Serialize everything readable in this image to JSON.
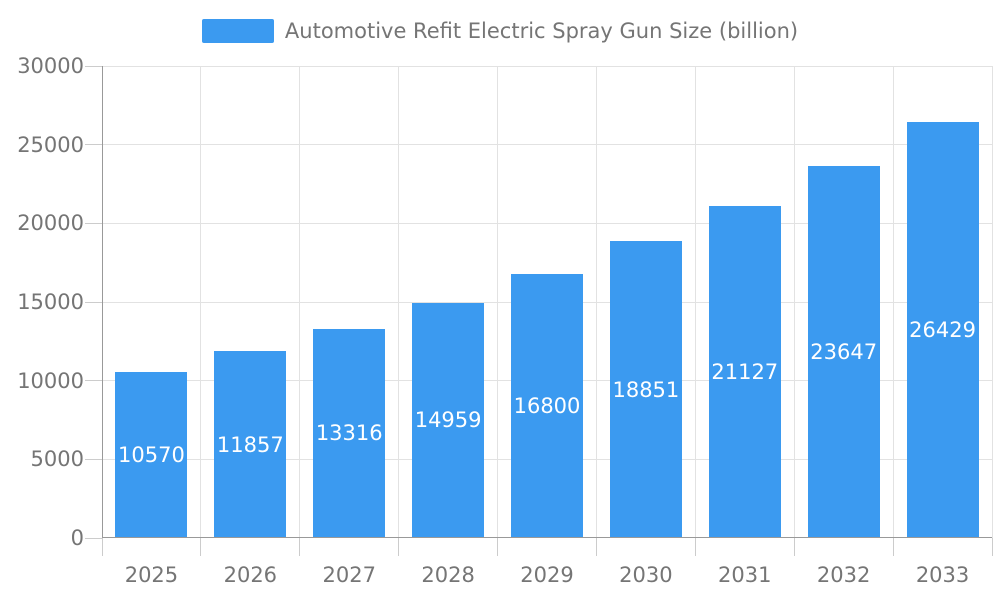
{
  "legend": {
    "label": "Automotive Refit Electric Spray Gun Size (billion)"
  },
  "chart_data": {
    "type": "bar",
    "title": "Automotive Refit Electric Spray Gun Size (billion)",
    "categories": [
      "2025",
      "2026",
      "2027",
      "2028",
      "2029",
      "2030",
      "2031",
      "2032",
      "2033"
    ],
    "values": [
      10570,
      11857,
      13316,
      14959,
      16800,
      18851,
      21127,
      23647,
      26429
    ],
    "xlabel": "",
    "ylabel": "",
    "ylim": [
      0,
      30000
    ],
    "y_ticks": [
      0,
      5000,
      10000,
      15000,
      20000,
      25000,
      30000
    ],
    "grid": true,
    "legend_position": "top-center",
    "bar_color": "#3b9af0",
    "bar_label_color": "#ffffff",
    "axis_text_color": "#757575",
    "grid_color": "#e2e2e2",
    "tick_color": "#cccccc",
    "axis_line_color": "#999999",
    "background_color": "#ffffff"
  }
}
